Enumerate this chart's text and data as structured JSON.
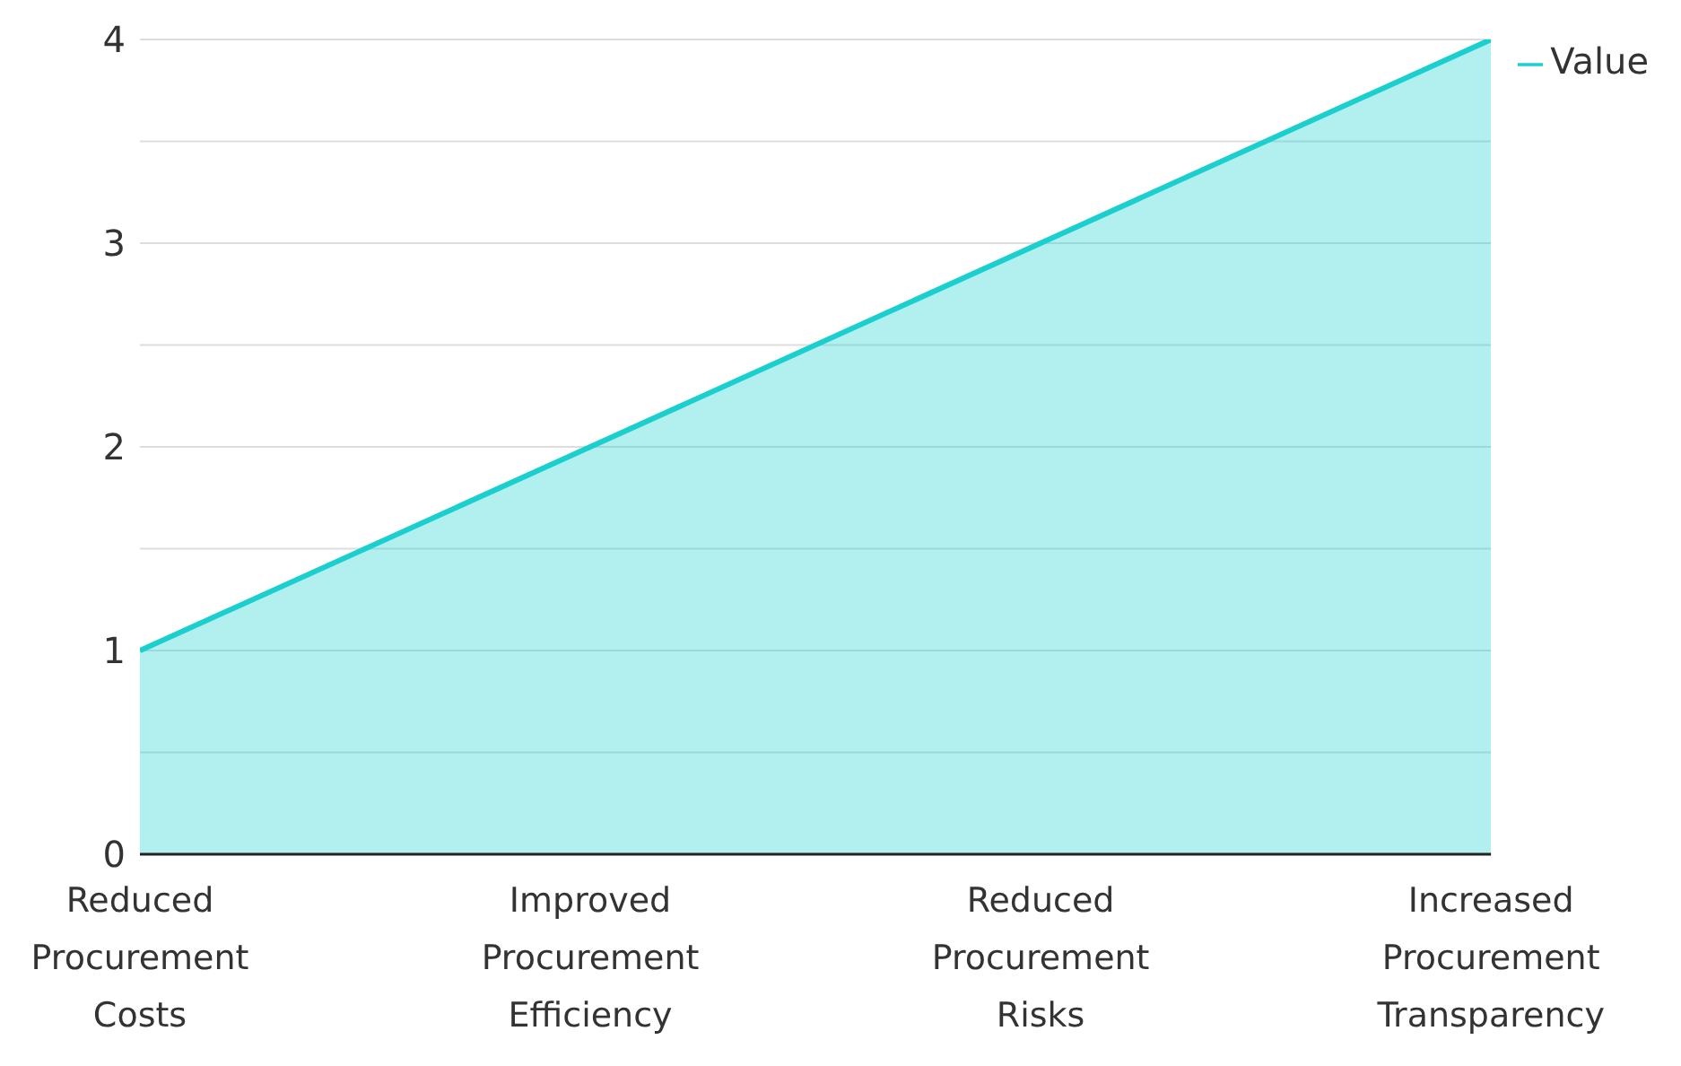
{
  "chart_data": {
    "type": "area",
    "categories": [
      "Reduced Procurement Costs",
      "Improved Procurement Efficiency",
      "Reduced Procurement Risks",
      "Increased Procurement Transparency"
    ],
    "series": [
      {
        "name": "Value",
        "color": "#1ccfcf",
        "values": [
          1,
          2,
          3,
          4
        ]
      }
    ],
    "ylim": [
      0,
      4
    ],
    "yticks": [
      0,
      {
        "value": 0.5,
        "label": null
      },
      1,
      {
        "value": 1.5,
        "label": null
      },
      2,
      {
        "value": 2.5,
        "label": null
      },
      3,
      {
        "value": 3.5,
        "label": null
      },
      4
    ],
    "grid": "y",
    "legend": "top right"
  }
}
